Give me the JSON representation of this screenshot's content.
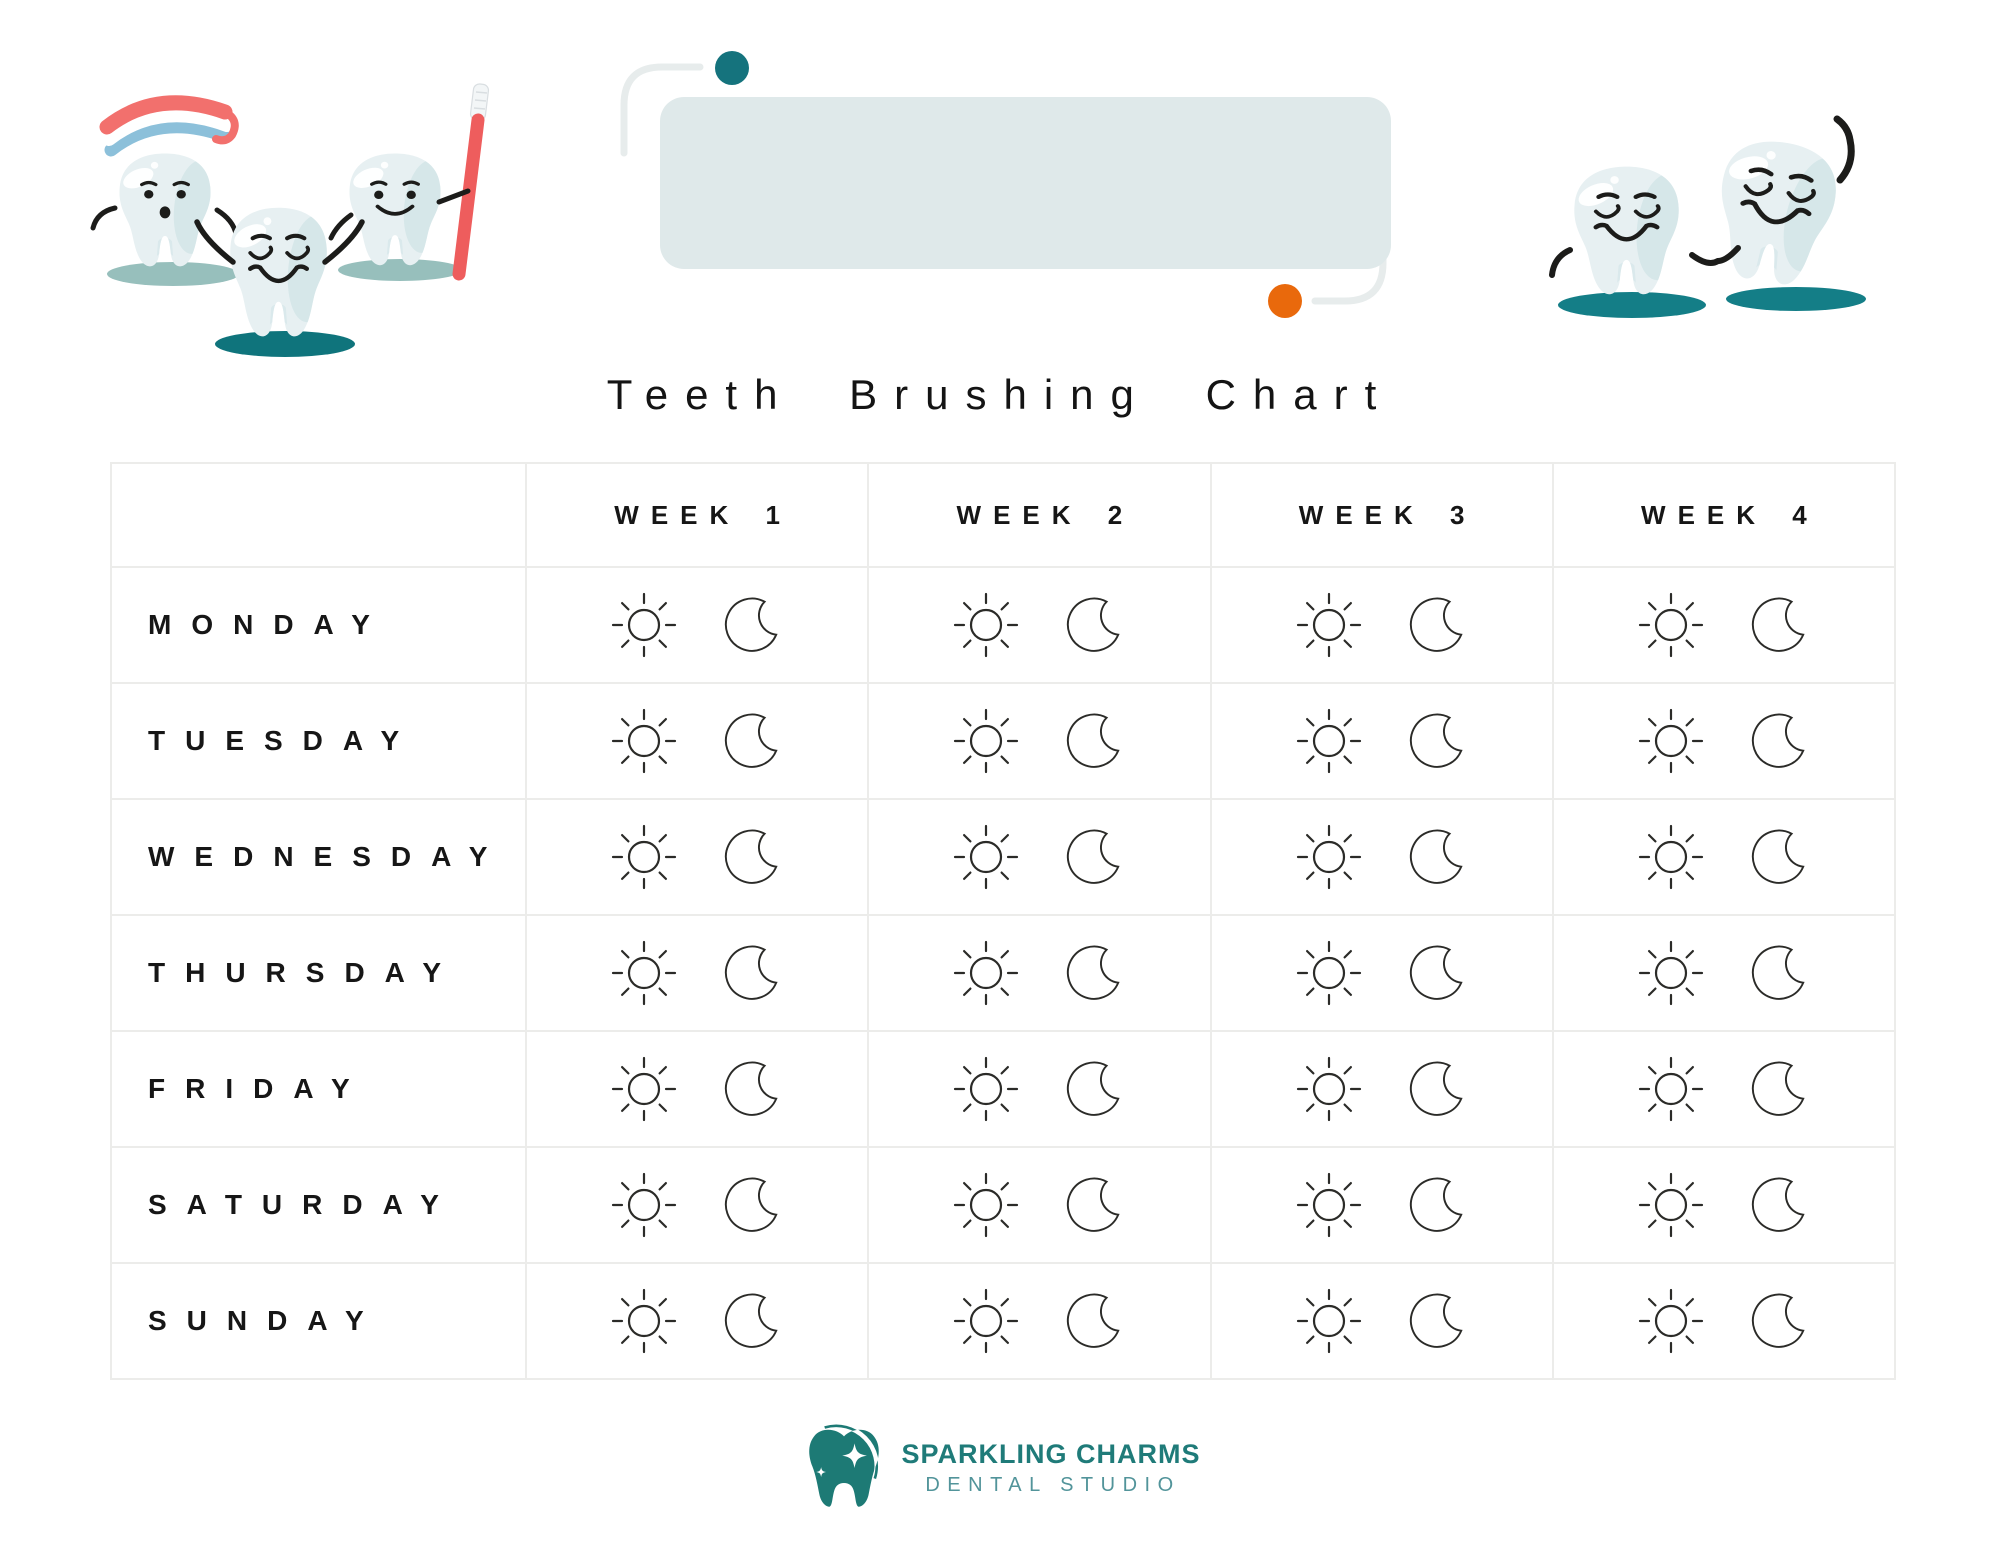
{
  "title": "Teeth Brushing Chart",
  "header": {
    "name_box_value": ""
  },
  "table": {
    "week_headers": [
      "WEEK 1",
      "WEEK 2",
      "WEEK 3",
      "WEEK 4"
    ],
    "days": [
      "MONDAY",
      "TUESDAY",
      "WEDNESDAY",
      "THURSDAY",
      "FRIDAY",
      "SATURDAY",
      "SUNDAY"
    ],
    "cell_icons": [
      "sun-icon",
      "moon-icon"
    ]
  },
  "footer": {
    "brand_name": "SPARKLING CHARMS",
    "brand_subtitle": "DENTAL STUDIO"
  },
  "colors": {
    "accent_teal": "#15737d",
    "accent_orange": "#e9690c",
    "name_box_fill": "#dfe9ea",
    "table_border": "#ececea",
    "icon_stroke": "#2b2b28",
    "logo_teal": "#1d7a75",
    "brand_text": "#1f7b79",
    "brand_subtext": "#52949a",
    "brush_red": "#ee5d5d",
    "shadow_dark_teal": "#147e87"
  }
}
